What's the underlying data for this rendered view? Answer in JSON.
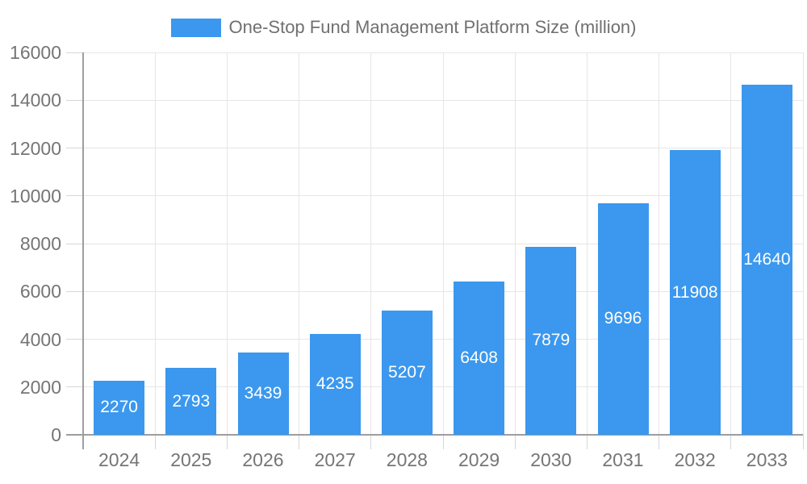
{
  "chart_data": {
    "type": "bar",
    "title": "One-Stop Fund Management Platform Size (million)",
    "legend": [
      {
        "label": "One-Stop Fund Management Platform Size (million)"
      }
    ],
    "legend_position": "top",
    "categories": [
      "2024",
      "2025",
      "2026",
      "2027",
      "2028",
      "2029",
      "2030",
      "2031",
      "2032",
      "2033"
    ],
    "series": [
      {
        "name": "One-Stop Fund Management Platform Size (million)",
        "values": [
          2270,
          2793,
          3439,
          4235,
          5207,
          6408,
          7879,
          9696,
          11908,
          14640
        ]
      }
    ],
    "xlabel": "",
    "ylabel": "",
    "ylim": [
      0,
      16000
    ],
    "ytick_step": 2000,
    "yticks": [
      0,
      2000,
      4000,
      6000,
      8000,
      10000,
      12000,
      14000,
      16000
    ],
    "grid": true,
    "bar_labels_visible": true
  },
  "colors": {
    "bar": "#3b98ee",
    "bar_label": "#ffffff",
    "axis_line": "#9e9e9e",
    "gridline": "#e6e6e6",
    "tick": "#d6d6d6",
    "tick_label": "#757575",
    "legend_text": "#707070",
    "background": "#ffffff"
  }
}
